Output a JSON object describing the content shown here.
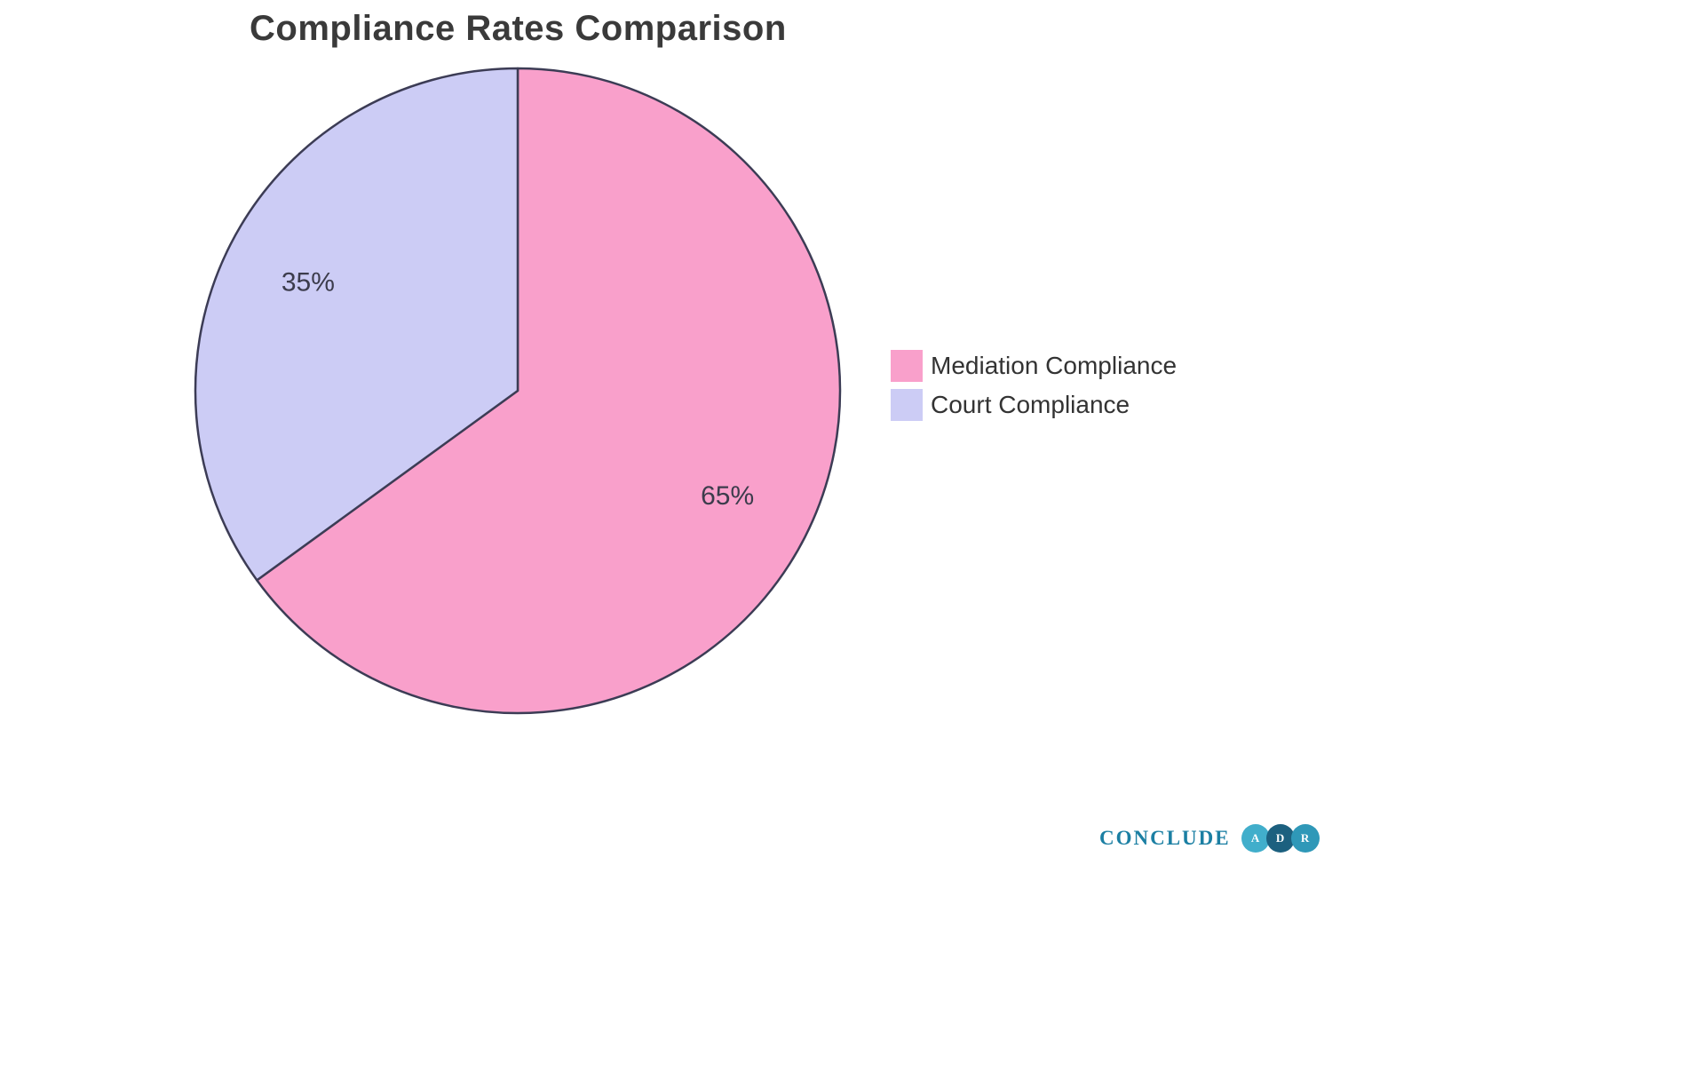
{
  "chart_data": {
    "type": "pie",
    "title": "Compliance Rates Comparison",
    "slices": [
      {
        "label": "Mediation Compliance",
        "value": 65,
        "display": "65%",
        "color": "#F9A0CB"
      },
      {
        "label": "Court Compliance",
        "value": 35,
        "display": "35%",
        "color": "#CCCCF5"
      }
    ],
    "start_angle_deg": 0,
    "direction": "clockwise",
    "stroke_color": "#3C3C55",
    "label_color": "#3C3C4C",
    "legend_position": "right"
  },
  "legend": {
    "items": [
      {
        "label": "Mediation Compliance",
        "color": "#F9A0CB"
      },
      {
        "label": "Court Compliance",
        "color": "#CCCCF5"
      }
    ]
  },
  "branding": {
    "name": "CONCLUDE",
    "text_color": "#1B7FA3",
    "badges": [
      {
        "letter": "A",
        "color": "#41AECB"
      },
      {
        "letter": "D",
        "color": "#1C607F"
      },
      {
        "letter": "R",
        "color": "#2F98B8"
      }
    ]
  }
}
